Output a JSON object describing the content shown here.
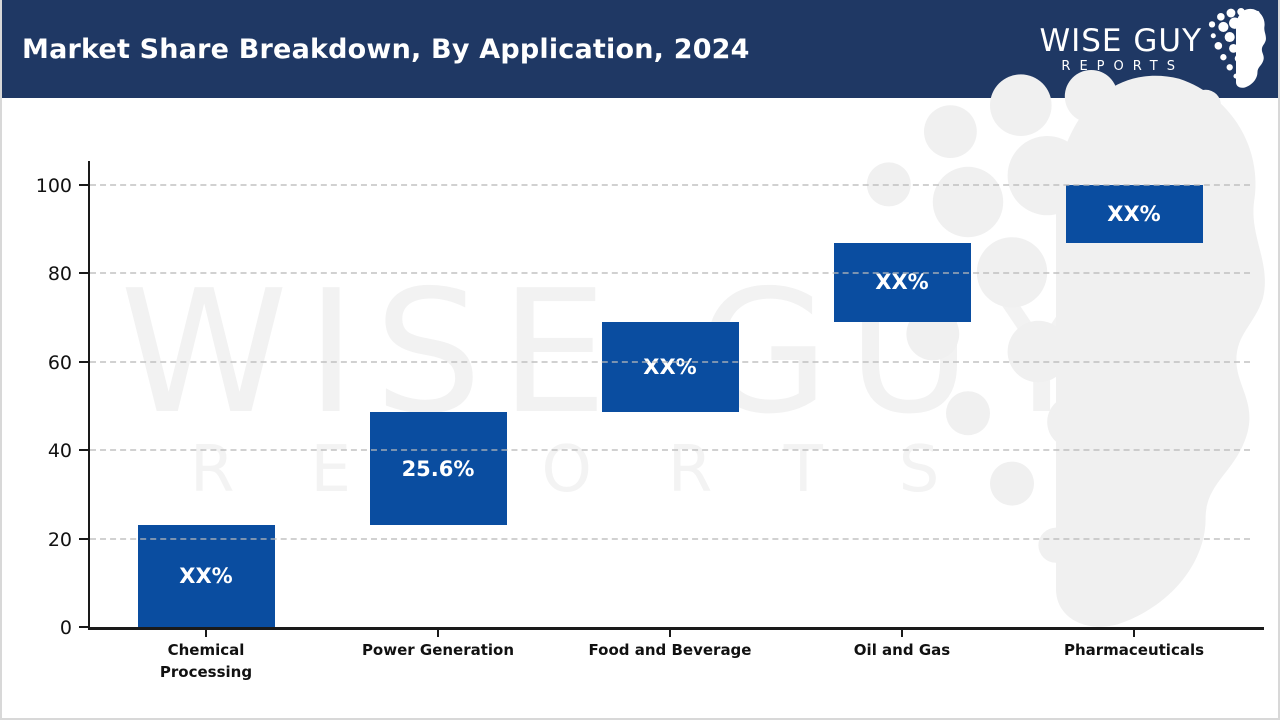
{
  "header": {
    "title": "Market Share Breakdown, By Application, 2024",
    "logo": {
      "line1": "WISE GUY",
      "line2": "REPORTS"
    }
  },
  "watermark": {
    "line1": "WISE GUY",
    "line2": "REPORTS"
  },
  "colors": {
    "header_bg": "#1f3864",
    "bar": "#0a4da0",
    "bar_label": "#ffffff",
    "grid": "#b9b9b9",
    "axis": "#1a1a1a",
    "watermark": "#f2f2f2",
    "page_border": "#d8d8d8"
  },
  "chart_data": {
    "type": "bar",
    "subtype": "waterfall",
    "title": "Market Share Breakdown, By Application, 2024",
    "categories": [
      "Chemical\nProcessing",
      "Power Generation",
      "Food and Beverage",
      "Oil and Gas",
      "Pharmaceuticals"
    ],
    "segments": [
      {
        "category": "Chemical Processing",
        "start": 0,
        "end": 23,
        "value": 23,
        "label": "XX%"
      },
      {
        "category": "Power Generation",
        "start": 23,
        "end": 48.6,
        "value": 25.6,
        "label": "25.6%"
      },
      {
        "category": "Food and Beverage",
        "start": 48.6,
        "end": 69,
        "value": 20.4,
        "label": "XX%"
      },
      {
        "category": "Oil and Gas",
        "start": 69,
        "end": 87,
        "value": 18,
        "label": "XX%"
      },
      {
        "category": "Pharmaceuticals",
        "start": 87,
        "end": 100,
        "value": 13,
        "label": "XX%"
      }
    ],
    "ylim": [
      0,
      105
    ],
    "yticks": [
      0,
      20,
      40,
      60,
      80,
      100
    ],
    "xlabel": "",
    "ylabel": "",
    "grid": "horizontal-dashed-over-bars",
    "legend": "none",
    "bar_color": "#0a4da0"
  }
}
